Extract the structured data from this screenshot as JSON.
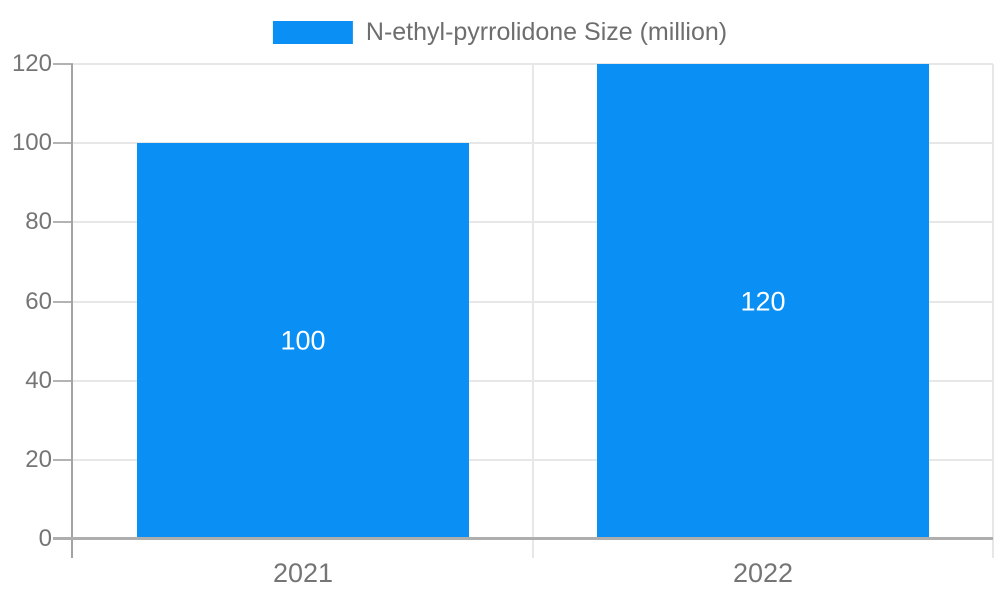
{
  "chart": {
    "background": "#ffffff",
    "legend": {
      "label": "N-ethyl-pyrrolidone Size (million)"
    },
    "chart_data": {
      "type": "bar",
      "title": "N-ethyl-pyrrolidone Size (million)",
      "categories": [
        "2021",
        "2022"
      ],
      "series": [
        {
          "name": "N-ethyl-pyrrolidone Size (million)",
          "values": [
            100,
            120
          ]
        }
      ],
      "bar_value_labels": [
        "100",
        "120"
      ],
      "xlabel": "",
      "ylabel": "",
      "ylim": [
        0,
        120
      ],
      "ytick_interval": 20,
      "yticks": [
        0,
        20,
        40,
        60,
        80,
        100,
        120
      ],
      "grid": true,
      "legend_position": "top-center",
      "colors": {
        "bar": "#0a90f5",
        "bar_label_text": "#ffffff",
        "axis_label_text": "#757575",
        "legend_text": "#6e6e6e",
        "gridline": "#e7e7e7",
        "y_axis_line": "#a3a3a3",
        "x_axis_line": "#aeaeae",
        "tick": "#b3b3b3",
        "background": "#ffffff"
      }
    }
  }
}
